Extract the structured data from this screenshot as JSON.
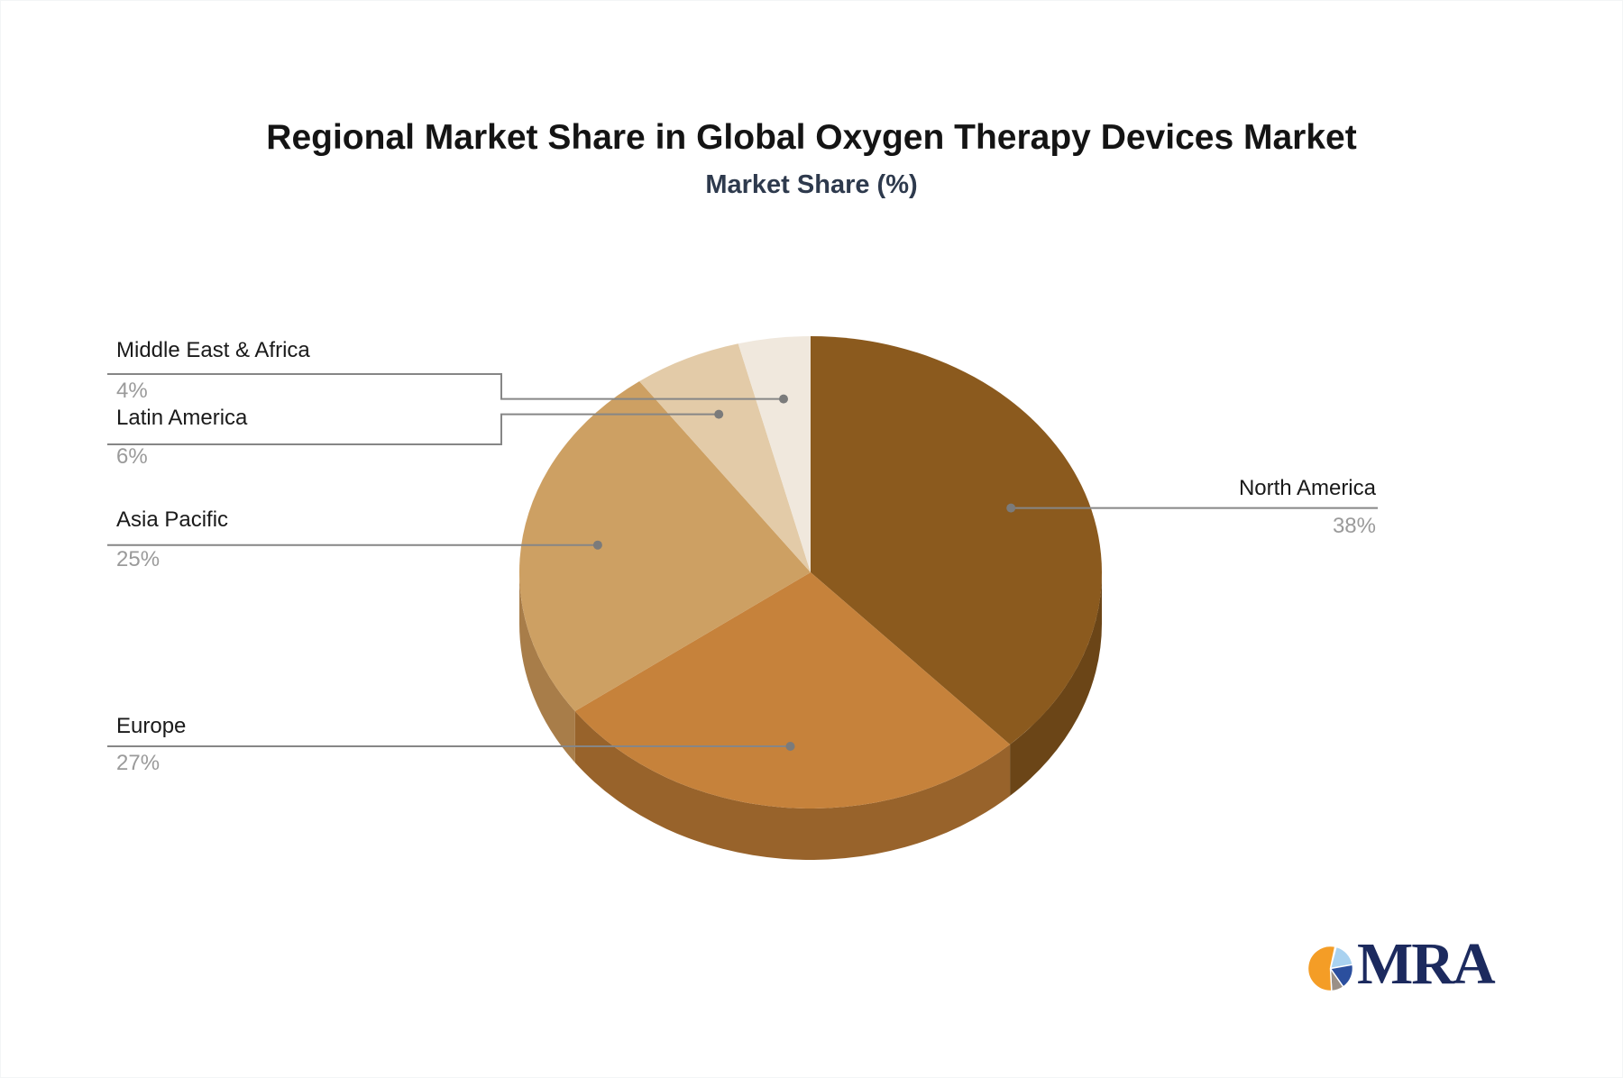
{
  "chart_data": {
    "type": "pie",
    "style": "3d",
    "title": "Regional Market Share in Global Oxygen Therapy Devices Market",
    "subtitle": "Market Share (%)",
    "unit": "%",
    "start_angle": "top",
    "direction": "clockwise",
    "legend": "none",
    "slices": [
      {
        "label": "North America",
        "value": 38,
        "pct_label": "38%",
        "color": "#8B5A1E",
        "side_color": "#6B4517"
      },
      {
        "label": "Europe",
        "value": 27,
        "pct_label": "27%",
        "color": "#C6823B",
        "side_color": "#98632B"
      },
      {
        "label": "Asia Pacific",
        "value": 25,
        "pct_label": "25%",
        "color": "#CDA063",
        "side_color": "#A87D49"
      },
      {
        "label": "Latin America",
        "value": 6,
        "pct_label": "6%",
        "color": "#E3CBA8",
        "side_color": "#B89F7E"
      },
      {
        "label": "Middle East & Africa",
        "value": 4,
        "pct_label": "4%",
        "color": "#F0E8DD",
        "side_color": "#C4BCB0"
      }
    ],
    "label_text_color": "#1a1a1a",
    "value_text_color": "#9a9a9a",
    "leader_line_color": "#868686",
    "leader_dot_color": "#7b7b7b"
  },
  "logo": {
    "text": "MRA",
    "text_color": "#1c2a5e",
    "icon_segments": [
      {
        "name": "light-blue",
        "color": "#A9D2F0",
        "from": 15,
        "to": 80
      },
      {
        "name": "dark-blue",
        "color": "#2B4F9E",
        "from": 80,
        "to": 145
      },
      {
        "name": "gray",
        "color": "#9A9087",
        "from": 145,
        "to": 177
      },
      {
        "name": "orange",
        "color": "#F49D26",
        "from": 177,
        "to": 372
      }
    ]
  }
}
